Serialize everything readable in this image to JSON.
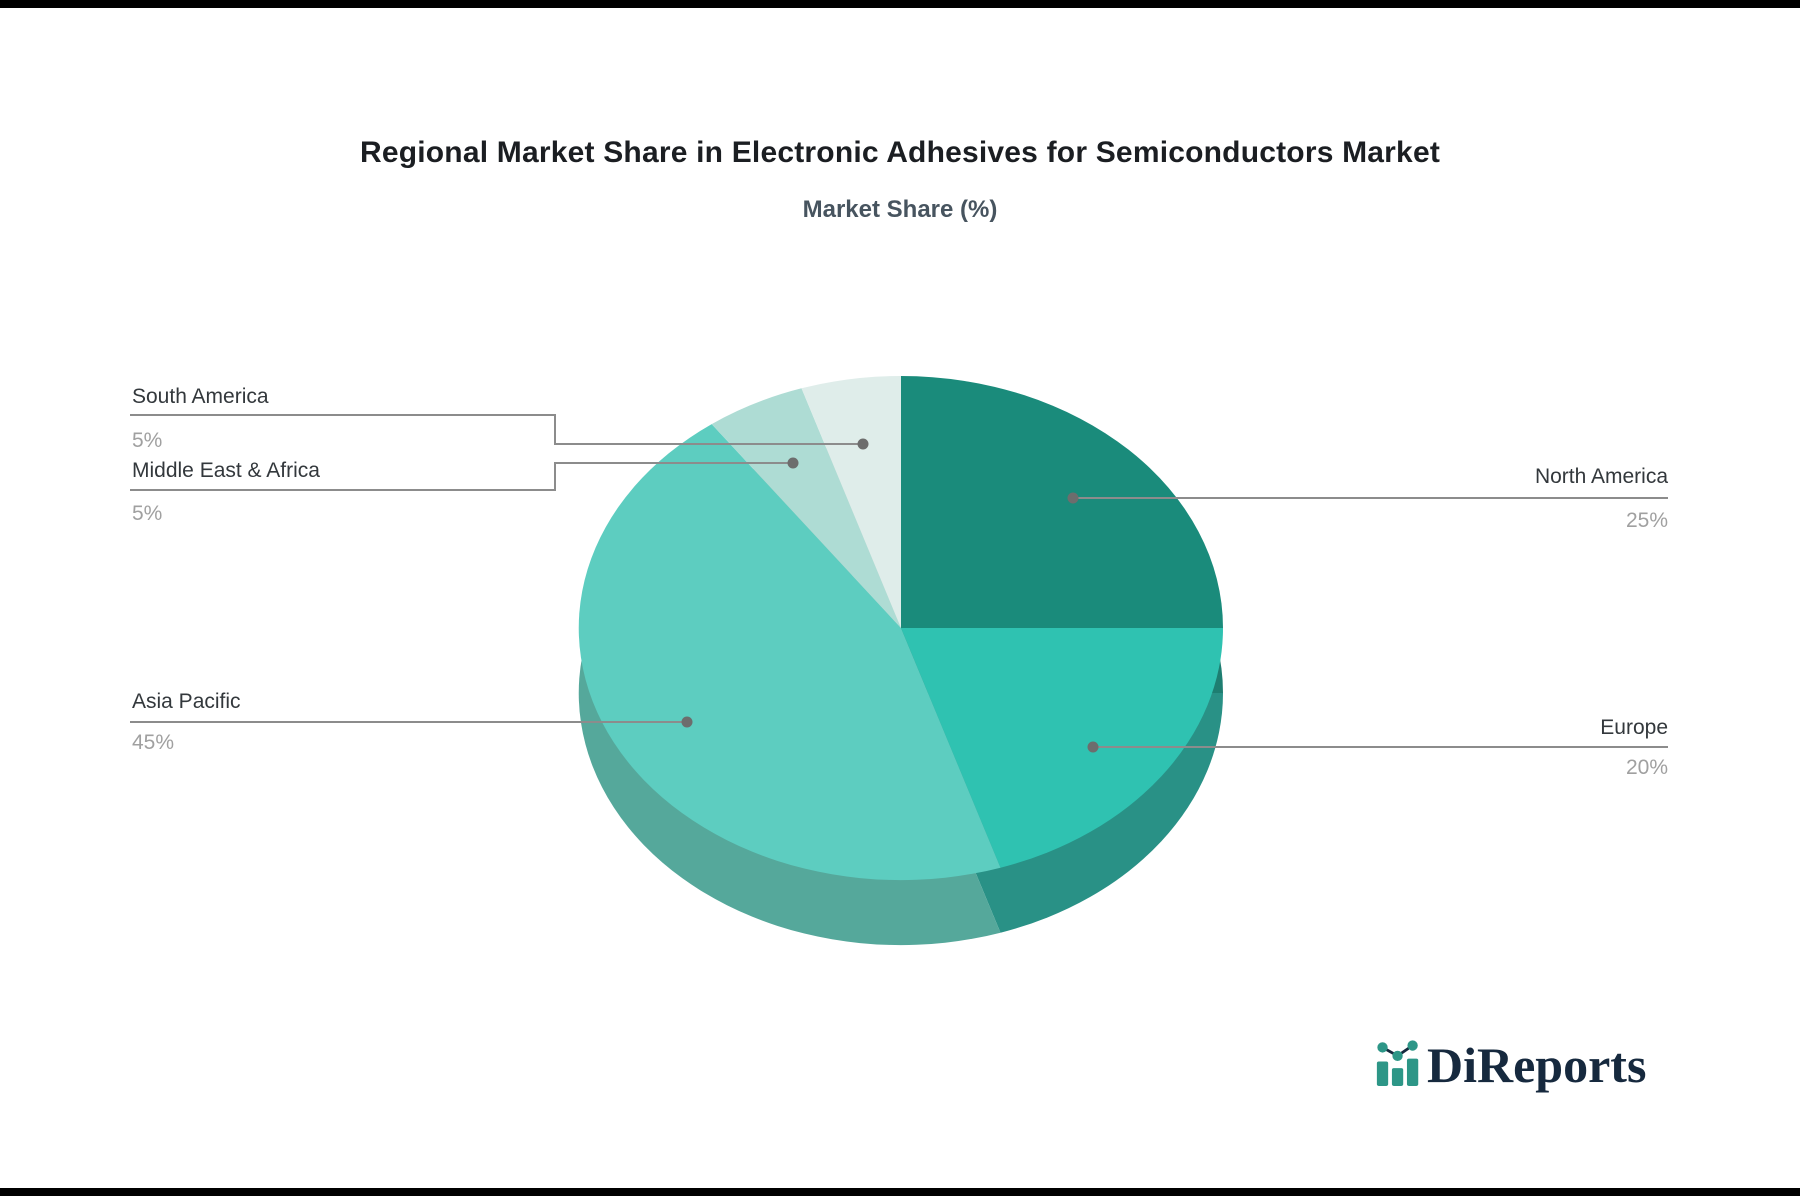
{
  "title": "Regional Market Share in Electronic Adhesives for Semiconductors Market",
  "subtitle": "Market Share (%)",
  "logo": {
    "text": "DiReports",
    "icon": "bars-and-line-chart-icon"
  },
  "colors": {
    "leader_line": "#8c8c8c",
    "leader_dot": "#6d6d6d",
    "label_text": "#33383c",
    "percent_text": "#a0a0a0",
    "logo_teal": "#2d9687",
    "logo_navy": "#16293e"
  },
  "chart_data": {
    "type": "pie",
    "title": "Regional Market Share in Electronic Adhesives for Semiconductors Market",
    "subtitle": "Market Share (%)",
    "unit": "%",
    "effect": "3d",
    "start_angle_deg": 0,
    "direction": "clockwise",
    "legend": "none",
    "labels_layout": "leader-lines",
    "slices": [
      {
        "label": "North America",
        "value": 25,
        "pct_label": "25%",
        "color": "#1a8b7b",
        "side_color": "#1e7e71"
      },
      {
        "label": "Europe",
        "value": 20,
        "pct_label": "20%",
        "color": "#2fc2b1",
        "side_color": "#299186"
      },
      {
        "label": "Asia Pacific",
        "value": 45,
        "pct_label": "45%",
        "color": "#5dcdc0",
        "side_color": "#55a89b"
      },
      {
        "label": "Middle East & Africa",
        "value": 5,
        "pct_label": "5%",
        "color": "#aedcd4",
        "side_color": "#8fbdb4"
      },
      {
        "label": "South America",
        "value": 5,
        "pct_label": "5%",
        "color": "#dfedea",
        "side_color": "#c2d6d1"
      }
    ]
  }
}
